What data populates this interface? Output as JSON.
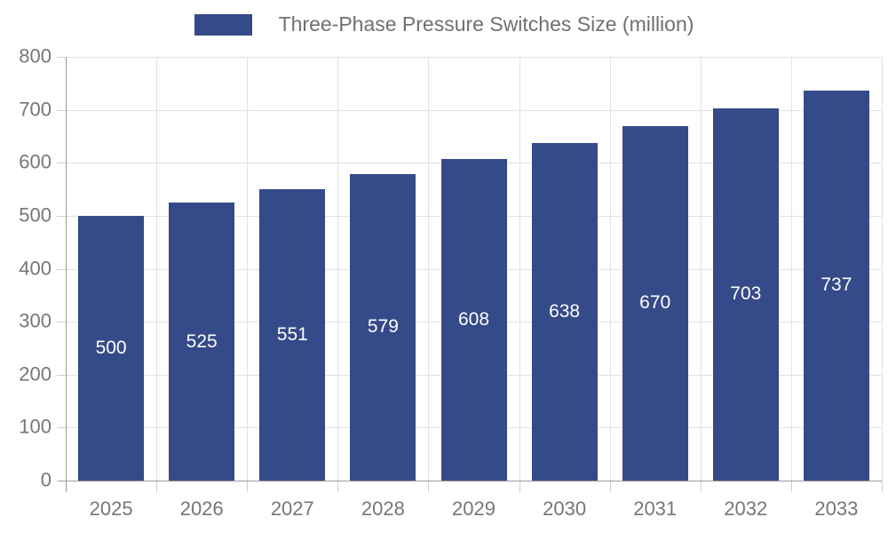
{
  "chart_data": {
    "type": "bar",
    "legend": "Three-Phase Pressure Switches Size (million)",
    "categories": [
      "2025",
      "2026",
      "2027",
      "2028",
      "2029",
      "2030",
      "2031",
      "2032",
      "2033"
    ],
    "values": [
      500,
      525,
      551,
      579,
      608,
      638,
      670,
      703,
      737
    ],
    "yticks": [
      0,
      100,
      200,
      300,
      400,
      500,
      600,
      700,
      800
    ],
    "ylim": [
      0,
      800
    ],
    "grid": "horizontal and vertical light gray gridlines",
    "legend_position": "top-center",
    "value_labels": "white, centered vertically inside each bar",
    "colors": {
      "bar": "#354a88",
      "grid": "#e2e2e2",
      "axis": "#9a9a9a",
      "tick": "#cdcdcd",
      "tick_label": "#767676",
      "legend_text": "#707070",
      "value_label": "#ffffff",
      "background": "#ffffff"
    }
  }
}
